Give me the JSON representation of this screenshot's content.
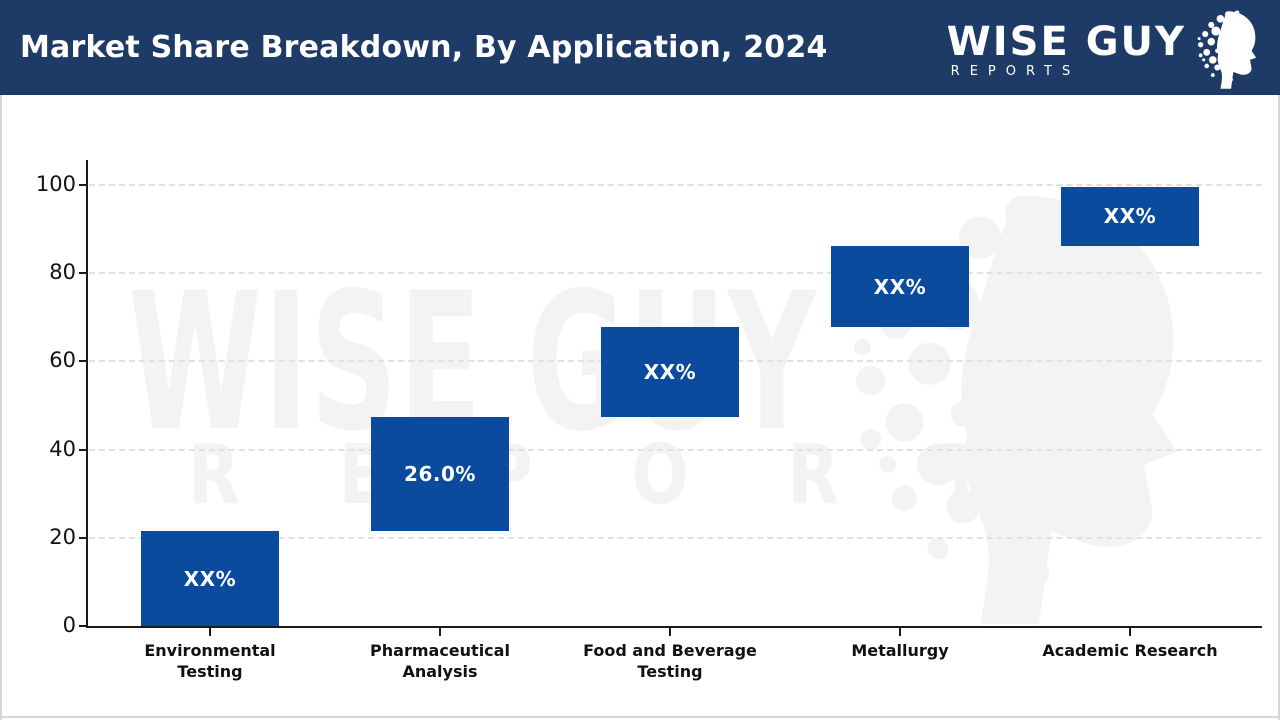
{
  "header": {
    "title": "Market Share Breakdown, By Application, 2024",
    "bg_color": "#1e3a67",
    "logo_line1": "WISE GUY",
    "logo_line2": "REPORTS"
  },
  "watermark": {
    "line1": "WISE GUY",
    "line2": "R E P O R T S"
  },
  "chart_data": {
    "type": "bar",
    "variant": "waterfall",
    "title": "Market Share Breakdown, By Application, 2024",
    "xlabel": "",
    "ylabel": "",
    "categories": [
      "Environmental Testing",
      "Pharmaceutical Analysis",
      "Food and Beverage Testing",
      "Metallurgy",
      "Academic Research"
    ],
    "category_lines": [
      [
        "Environmental",
        "Testing"
      ],
      [
        "Pharmaceutical",
        "Analysis"
      ],
      [
        "Food and Beverage",
        "Testing"
      ],
      [
        "Metallurgy"
      ],
      [
        "Academic Research"
      ]
    ],
    "segments": [
      {
        "category": "Environmental Testing",
        "start": 0,
        "end": 21.5,
        "label": "XX%"
      },
      {
        "category": "Pharmaceutical Analysis",
        "start": 21.5,
        "end": 47.5,
        "label": "26.0%"
      },
      {
        "category": "Food and Beverage Testing",
        "start": 47.5,
        "end": 67.7,
        "label": "XX%"
      },
      {
        "category": "Metallurgy",
        "start": 67.8,
        "end": 86.1,
        "label": "XX%"
      },
      {
        "category": "Academic Research",
        "start": 86.2,
        "end": 99.6,
        "label": "XX%"
      }
    ],
    "y_ticks": [
      0,
      20,
      40,
      60,
      80,
      100
    ],
    "ylim": [
      0,
      106
    ],
    "bar_color": "#0a4b9e",
    "grid": "horizontal-dashed",
    "legend": "none"
  }
}
